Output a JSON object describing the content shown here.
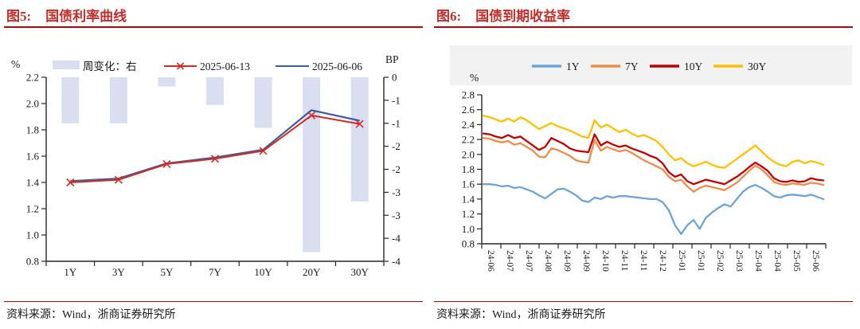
{
  "figures": [
    {
      "label": "图5:",
      "title": "国债利率曲线",
      "source": "资料来源：Wind，浙商证券研究所"
    },
    {
      "label": "图6:",
      "title": "国债到期收益率",
      "source": "资料来源：Wind，浙商证券研究所"
    }
  ],
  "chart_data": [
    {
      "type": "bar+line",
      "title": "国债利率曲线",
      "categories": [
        "1Y",
        "3Y",
        "5Y",
        "7Y",
        "10Y",
        "20Y",
        "30Y"
      ],
      "left_axis": {
        "label": "%",
        "min": 0.8,
        "max": 2.2,
        "ticks": [
          "2.2",
          "2.0",
          "1.8",
          "1.6",
          "1.4",
          "1.2",
          "1.0",
          "0.8"
        ]
      },
      "right_axis": {
        "label": "BP",
        "min": -4,
        "max": 0,
        "ticks": [
          "0",
          "-1",
          "-1",
          "-2",
          "-2",
          "-3",
          "-3",
          "-4",
          "-4"
        ]
      },
      "bar_series": {
        "name": "周变化：右",
        "axis": "right",
        "color": "#d9def1",
        "values": [
          -1.0,
          -1.0,
          -0.2,
          -0.6,
          -1.1,
          -3.8,
          -2.7
        ]
      },
      "line_series": [
        {
          "name": "2025-06-13",
          "color": "#d42b26",
          "marker": "x",
          "values": [
            1.4,
            1.42,
            1.54,
            1.58,
            1.64,
            1.91,
            1.845
          ]
        },
        {
          "name": "2025-06-06",
          "color": "#3a5e9e",
          "marker": "none",
          "values": [
            1.41,
            1.43,
            1.545,
            1.59,
            1.65,
            1.95,
            1.87
          ]
        }
      ],
      "legend_position": "top"
    },
    {
      "type": "line",
      "title": "国债到期收益率",
      "ylabel": "%",
      "ylim": [
        0.8,
        2.8
      ],
      "y_ticks": [
        "2.8",
        "2.6",
        "2.4",
        "2.2",
        "2.0",
        "1.8",
        "1.6",
        "1.4",
        "1.2",
        "1.0",
        "0.8"
      ],
      "x_tick_labels": [
        "24-06",
        "24-07",
        "24-07",
        "24-08",
        "24-09",
        "24-09",
        "24-10",
        "24-11",
        "24-11",
        "24-12",
        "25-01",
        "25-01",
        "25-02",
        "25-03",
        "25-04",
        "25-04",
        "25-05",
        "25-06"
      ],
      "legend_band_color": "#f2f2f2",
      "legend_position": "top",
      "series": [
        {
          "name": "1Y",
          "color": "#6fa3d8",
          "values": [
            1.6,
            1.6,
            1.59,
            1.57,
            1.58,
            1.55,
            1.56,
            1.53,
            1.5,
            1.45,
            1.41,
            1.47,
            1.53,
            1.54,
            1.5,
            1.45,
            1.38,
            1.36,
            1.42,
            1.4,
            1.44,
            1.42,
            1.44,
            1.44,
            1.43,
            1.42,
            1.41,
            1.4,
            1.4,
            1.36,
            1.25,
            1.05,
            0.93,
            1.05,
            1.12,
            1.0,
            1.15,
            1.22,
            1.28,
            1.33,
            1.3,
            1.4,
            1.5,
            1.56,
            1.59,
            1.55,
            1.5,
            1.44,
            1.42,
            1.45,
            1.46,
            1.45,
            1.44,
            1.46,
            1.43,
            1.4
          ]
        },
        {
          "name": "7Y",
          "color": "#ed8c4a",
          "values": [
            2.22,
            2.21,
            2.18,
            2.16,
            2.18,
            2.13,
            2.15,
            2.1,
            2.05,
            1.97,
            1.96,
            2.08,
            2.06,
            2.02,
            1.98,
            1.92,
            1.9,
            1.89,
            2.19,
            2.05,
            2.1,
            2.07,
            2.04,
            2.06,
            2.02,
            1.97,
            1.92,
            1.88,
            1.84,
            1.8,
            1.7,
            1.64,
            1.66,
            1.57,
            1.5,
            1.55,
            1.58,
            1.56,
            1.54,
            1.52,
            1.57,
            1.62,
            1.7,
            1.78,
            1.85,
            1.8,
            1.72,
            1.63,
            1.6,
            1.59,
            1.61,
            1.6,
            1.59,
            1.62,
            1.61,
            1.59
          ]
        },
        {
          "name": "10Y",
          "color": "#c00000",
          "values": [
            2.28,
            2.27,
            2.24,
            2.22,
            2.26,
            2.22,
            2.24,
            2.18,
            2.12,
            2.06,
            2.1,
            2.22,
            2.18,
            2.14,
            2.08,
            2.05,
            2.04,
            2.03,
            2.27,
            2.12,
            2.17,
            2.13,
            2.1,
            2.12,
            2.08,
            2.05,
            2.02,
            1.98,
            1.95,
            1.88,
            1.76,
            1.7,
            1.73,
            1.64,
            1.6,
            1.63,
            1.66,
            1.64,
            1.62,
            1.6,
            1.65,
            1.7,
            1.76,
            1.83,
            1.89,
            1.84,
            1.78,
            1.68,
            1.64,
            1.63,
            1.65,
            1.63,
            1.64,
            1.68,
            1.66,
            1.65
          ]
        },
        {
          "name": "30Y",
          "color": "#ffc000",
          "values": [
            2.52,
            2.5,
            2.47,
            2.44,
            2.48,
            2.44,
            2.5,
            2.46,
            2.4,
            2.34,
            2.38,
            2.42,
            2.38,
            2.35,
            2.32,
            2.28,
            2.24,
            2.22,
            2.46,
            2.36,
            2.4,
            2.35,
            2.3,
            2.33,
            2.28,
            2.24,
            2.26,
            2.22,
            2.18,
            2.1,
            2.0,
            1.92,
            1.95,
            1.88,
            1.84,
            1.87,
            1.9,
            1.86,
            1.83,
            1.82,
            1.88,
            1.94,
            2.0,
            2.06,
            2.12,
            2.04,
            1.96,
            1.9,
            1.86,
            1.84,
            1.9,
            1.92,
            1.88,
            1.91,
            1.89,
            1.86
          ]
        }
      ]
    }
  ]
}
